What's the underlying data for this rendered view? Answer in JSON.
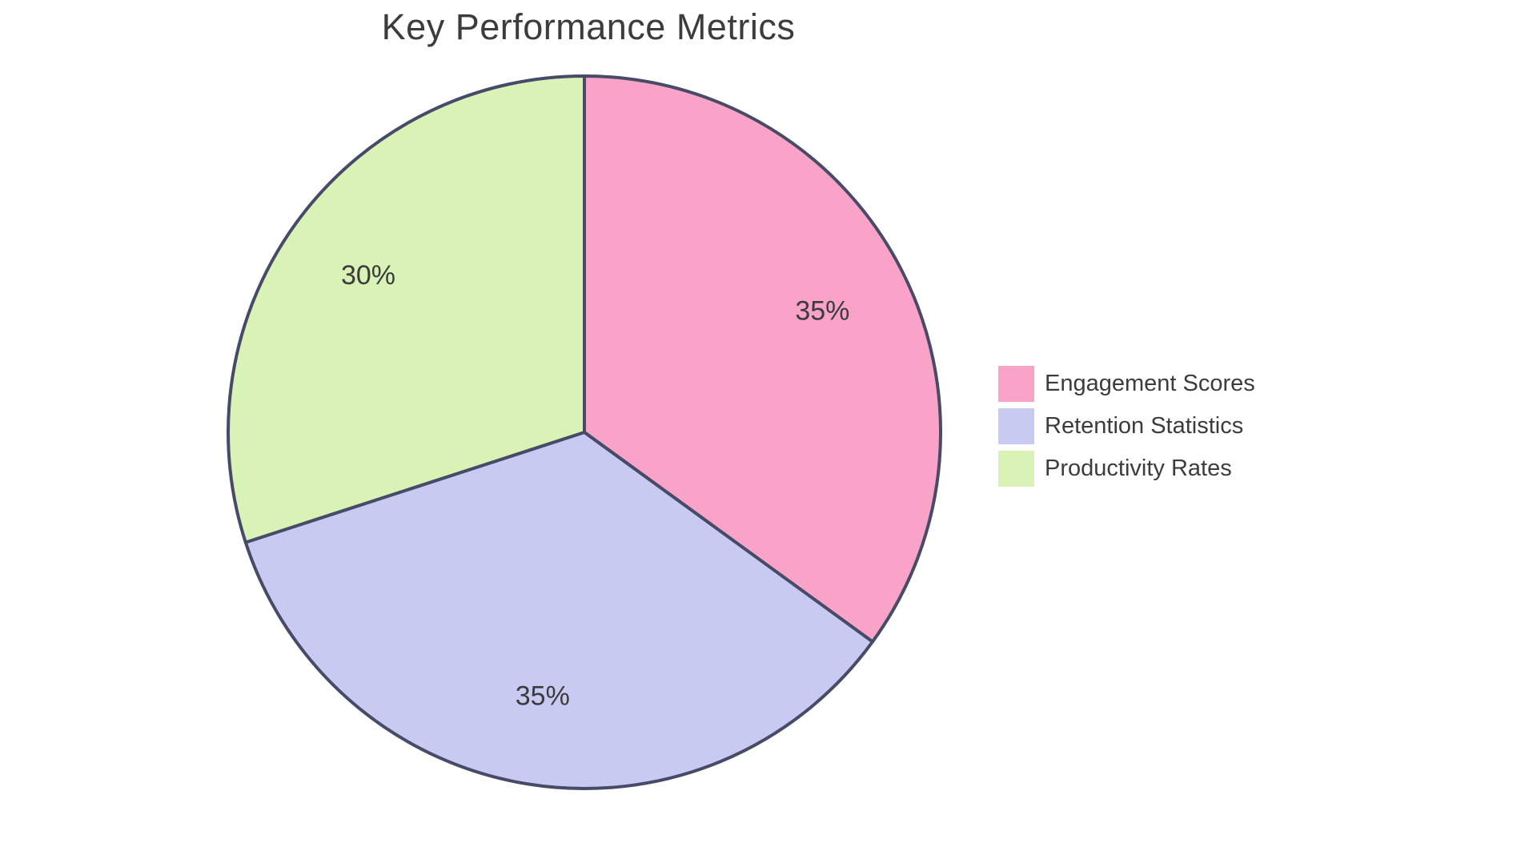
{
  "title": "Key Performance Metrics",
  "chart_data": {
    "type": "pie",
    "title": "Key Performance Metrics",
    "labels": [
      "Engagement Scores",
      "Retention Statistics",
      "Productivity Rates"
    ],
    "values": [
      35,
      35,
      30
    ],
    "percent_labels": [
      "35%",
      "35%",
      "30%"
    ],
    "colors": [
      "#F9A3C8",
      "#C9CAF2",
      "#D9F2B6"
    ],
    "edge_color": "#474B68",
    "text_color": "#3C3C3C",
    "background_color": "#FFFFFF",
    "start_angle_deg": 90,
    "clockwise": true,
    "label_distance": 0.75,
    "legend_position": "right"
  },
  "legend": {
    "items": [
      {
        "label": "Engagement Scores",
        "color": "#F9A3C8"
      },
      {
        "label": "Retention Statistics",
        "color": "#C9CAF2"
      },
      {
        "label": "Productivity Rates",
        "color": "#D9F2B6"
      }
    ]
  }
}
